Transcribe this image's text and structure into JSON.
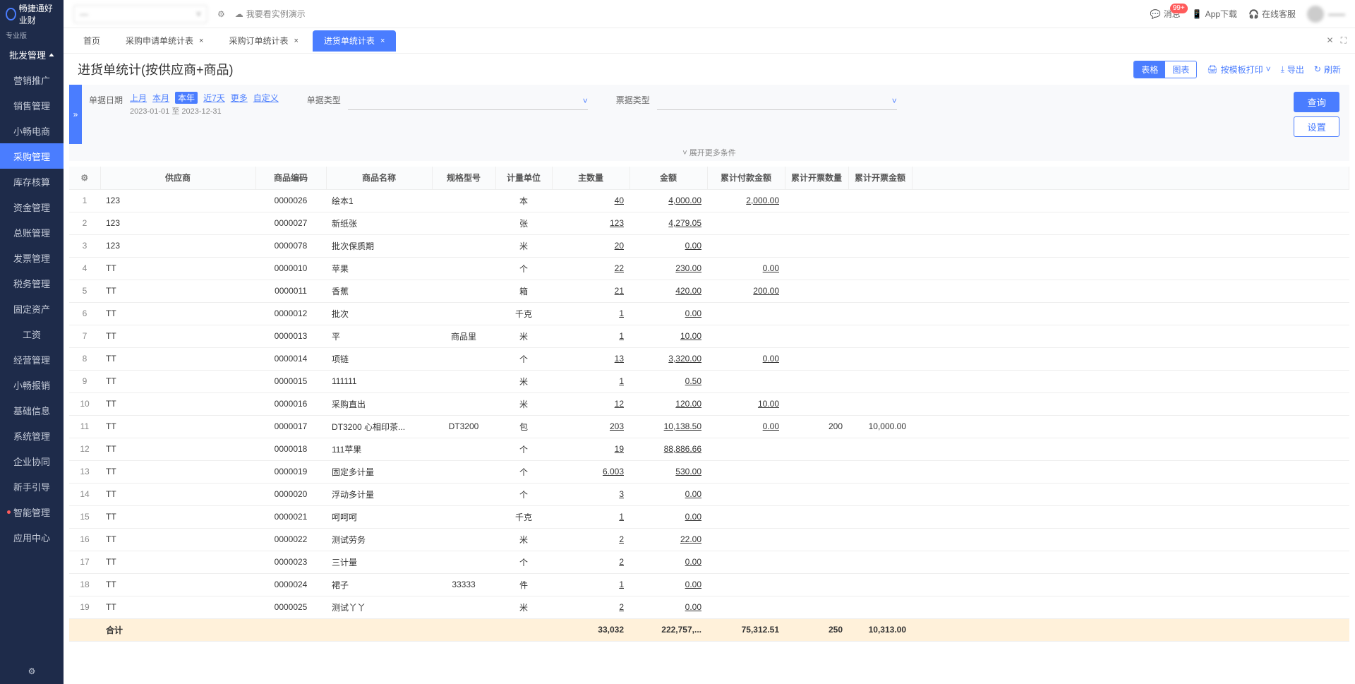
{
  "brand": {
    "name": "畅捷通好业财",
    "edition": "专业版"
  },
  "topbar": {
    "demo": "我要看实例演示",
    "msg": "消息",
    "msg_badge": "99+",
    "download": "App下载",
    "service": "在线客服"
  },
  "sidebar": {
    "head": "批发管理",
    "items": [
      "营销推广",
      "销售管理",
      "小畅电商",
      "采购管理",
      "库存核算",
      "资金管理",
      "总账管理",
      "发票管理",
      "税务管理",
      "固定资产",
      "工资",
      "经营管理",
      "小畅报销",
      "基础信息",
      "系统管理",
      "企业协同",
      "新手引导",
      "智能管理",
      "应用中心"
    ],
    "active": "采购管理",
    "dotted": [
      "智能管理"
    ]
  },
  "tabs": {
    "home": "首页",
    "items": [
      "采购申请单统计表",
      "采购订单统计表",
      "进货单统计表"
    ],
    "active": "进货单统计表"
  },
  "page": {
    "title": "进货单统计(按供应商+商品)",
    "seg": [
      "表格",
      "图表"
    ],
    "seg_on": "表格",
    "tools": {
      "print": "按模板打印",
      "export": "导出",
      "refresh": "刷新"
    }
  },
  "filter": {
    "date_label": "单据日期",
    "date_opts": [
      "上月",
      "本月",
      "本年",
      "近7天",
      "更多",
      "自定义"
    ],
    "date_on": "本年",
    "date_range": "2023-01-01 至 2023-12-31",
    "field1": "单据类型",
    "field2": "票据类型",
    "query": "查询",
    "setting": "设置",
    "expand": "展开更多条件"
  },
  "table": {
    "columns": [
      "供应商",
      "商品编码",
      "商品名称",
      "规格型号",
      "计量单位",
      "主数量",
      "金额",
      "累计付款金额",
      "累计开票数量",
      "累计开票金额"
    ],
    "rows": [
      {
        "i": 1,
        "sup": "123",
        "code": "0000026",
        "name": "绘本1",
        "spec": "",
        "unit": "本",
        "qty": "40",
        "amt": "4,000.00",
        "pay": "2,000.00",
        "invq": "",
        "inva": ""
      },
      {
        "i": 2,
        "sup": "123",
        "code": "0000027",
        "name": "新纸张",
        "spec": "",
        "unit": "张",
        "qty": "123",
        "amt": "4,279.05",
        "pay": "",
        "invq": "",
        "inva": ""
      },
      {
        "i": 3,
        "sup": "123",
        "code": "0000078",
        "name": "批次保质期",
        "spec": "",
        "unit": "米",
        "qty": "20",
        "amt": "0.00",
        "pay": "",
        "invq": "",
        "inva": ""
      },
      {
        "i": 4,
        "sup": "TT",
        "code": "0000010",
        "name": "苹果",
        "spec": "",
        "unit": "个",
        "qty": "22",
        "amt": "230.00",
        "pay": "0.00",
        "invq": "",
        "inva": ""
      },
      {
        "i": 5,
        "sup": "TT",
        "code": "0000011",
        "name": "香蕉",
        "spec": "",
        "unit": "箱",
        "qty": "21",
        "amt": "420.00",
        "pay": "200.00",
        "invq": "",
        "inva": ""
      },
      {
        "i": 6,
        "sup": "TT",
        "code": "0000012",
        "name": "批次",
        "spec": "",
        "unit": "千克",
        "qty": "1",
        "amt": "0.00",
        "pay": "",
        "invq": "",
        "inva": ""
      },
      {
        "i": 7,
        "sup": "TT",
        "code": "0000013",
        "name": "平",
        "spec": "商品里",
        "unit": "米",
        "qty": "1",
        "amt": "10.00",
        "pay": "",
        "invq": "",
        "inva": ""
      },
      {
        "i": 8,
        "sup": "TT",
        "code": "0000014",
        "name": "项链",
        "spec": "",
        "unit": "个",
        "qty": "13",
        "amt": "3,320.00",
        "pay": "0.00",
        "invq": "",
        "inva": ""
      },
      {
        "i": 9,
        "sup": "TT",
        "code": "0000015",
        "name": "111111",
        "spec": "",
        "unit": "米",
        "qty": "1",
        "amt": "0.50",
        "pay": "",
        "invq": "",
        "inva": ""
      },
      {
        "i": 10,
        "sup": "TT",
        "code": "0000016",
        "name": "采购直出",
        "spec": "",
        "unit": "米",
        "qty": "12",
        "amt": "120.00",
        "pay": "10.00",
        "invq": "",
        "inva": ""
      },
      {
        "i": 11,
        "sup": "TT",
        "code": "0000017",
        "name": "DT3200 心相印茶...",
        "spec": "DT3200",
        "unit": "包",
        "qty": "203",
        "amt": "10,138.50",
        "pay": "0.00",
        "invq": "200",
        "inva": "10,000.00"
      },
      {
        "i": 12,
        "sup": "TT",
        "code": "0000018",
        "name": "111苹果",
        "spec": "",
        "unit": "个",
        "qty": "19",
        "amt": "88,886.66",
        "pay": "",
        "invq": "",
        "inva": ""
      },
      {
        "i": 13,
        "sup": "TT",
        "code": "0000019",
        "name": "固定多计量",
        "spec": "",
        "unit": "个",
        "qty": "6.003",
        "amt": "530.00",
        "pay": "",
        "invq": "",
        "inva": ""
      },
      {
        "i": 14,
        "sup": "TT",
        "code": "0000020",
        "name": "浮动多计量",
        "spec": "",
        "unit": "个",
        "qty": "3",
        "amt": "0.00",
        "pay": "",
        "invq": "",
        "inva": ""
      },
      {
        "i": 15,
        "sup": "TT",
        "code": "0000021",
        "name": "呵呵呵",
        "spec": "",
        "unit": "千克",
        "qty": "1",
        "amt": "0.00",
        "pay": "",
        "invq": "",
        "inva": ""
      },
      {
        "i": 16,
        "sup": "TT",
        "code": "0000022",
        "name": "测试劳务",
        "spec": "",
        "unit": "米",
        "qty": "2",
        "amt": "22.00",
        "pay": "",
        "invq": "",
        "inva": ""
      },
      {
        "i": 17,
        "sup": "TT",
        "code": "0000023",
        "name": "三计量",
        "spec": "",
        "unit": "个",
        "qty": "2",
        "amt": "0.00",
        "pay": "",
        "invq": "",
        "inva": ""
      },
      {
        "i": 18,
        "sup": "TT",
        "code": "0000024",
        "name": "裙子",
        "spec": "33333",
        "unit": "件",
        "qty": "1",
        "amt": "0.00",
        "pay": "",
        "invq": "",
        "inva": ""
      },
      {
        "i": 19,
        "sup": "TT",
        "code": "0000025",
        "name": "测试丫丫",
        "spec": "",
        "unit": "米",
        "qty": "2",
        "amt": "0.00",
        "pay": "",
        "invq": "",
        "inva": ""
      }
    ],
    "total_label": "合计",
    "total": {
      "qty": "33,032",
      "amt": "222,757,...",
      "pay": "75,312.51",
      "invq": "250",
      "inva": "10,313.00"
    }
  }
}
